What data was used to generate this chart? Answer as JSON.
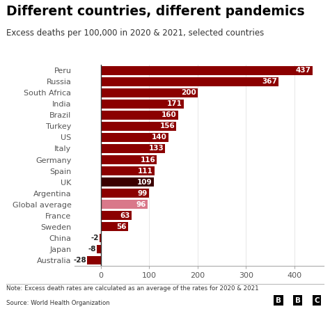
{
  "title": "Different countries, different pandemics",
  "subtitle": "Excess deaths per 100,000 in 2020 & 2021, selected countries",
  "note": "Note: Excess death rates are calculated as an average of the rates for 2020 & 2021",
  "source": "Source: World Health Organization",
  "countries": [
    "Peru",
    "Russia",
    "South Africa",
    "India",
    "Brazil",
    "Turkey",
    "US",
    "Italy",
    "Germany",
    "Spain",
    "UK",
    "Argentina",
    "Global average",
    "France",
    "Sweden",
    "China",
    "Japan",
    "Australia"
  ],
  "values": [
    437,
    367,
    200,
    171,
    160,
    156,
    140,
    133,
    116,
    111,
    109,
    99,
    96,
    63,
    56,
    -2,
    -8,
    -28
  ],
  "bar_colors": [
    "#8B0000",
    "#8B0000",
    "#8B0000",
    "#8B0000",
    "#8B0000",
    "#8B0000",
    "#8B0000",
    "#8B0000",
    "#8B0000",
    "#8B0000",
    "#3B0000",
    "#8B0000",
    "#D9788A",
    "#8B0000",
    "#8B0000",
    "#8B0000",
    "#8B0000",
    "#8B0000"
  ],
  "xlim": [
    -55,
    460
  ],
  "xticks": [
    0,
    100,
    200,
    300,
    400
  ],
  "bg_color": "#ffffff",
  "bar_height": 0.78,
  "title_fontsize": 13.5,
  "subtitle_fontsize": 8.5,
  "tick_fontsize": 8,
  "label_fontsize": 7.5
}
